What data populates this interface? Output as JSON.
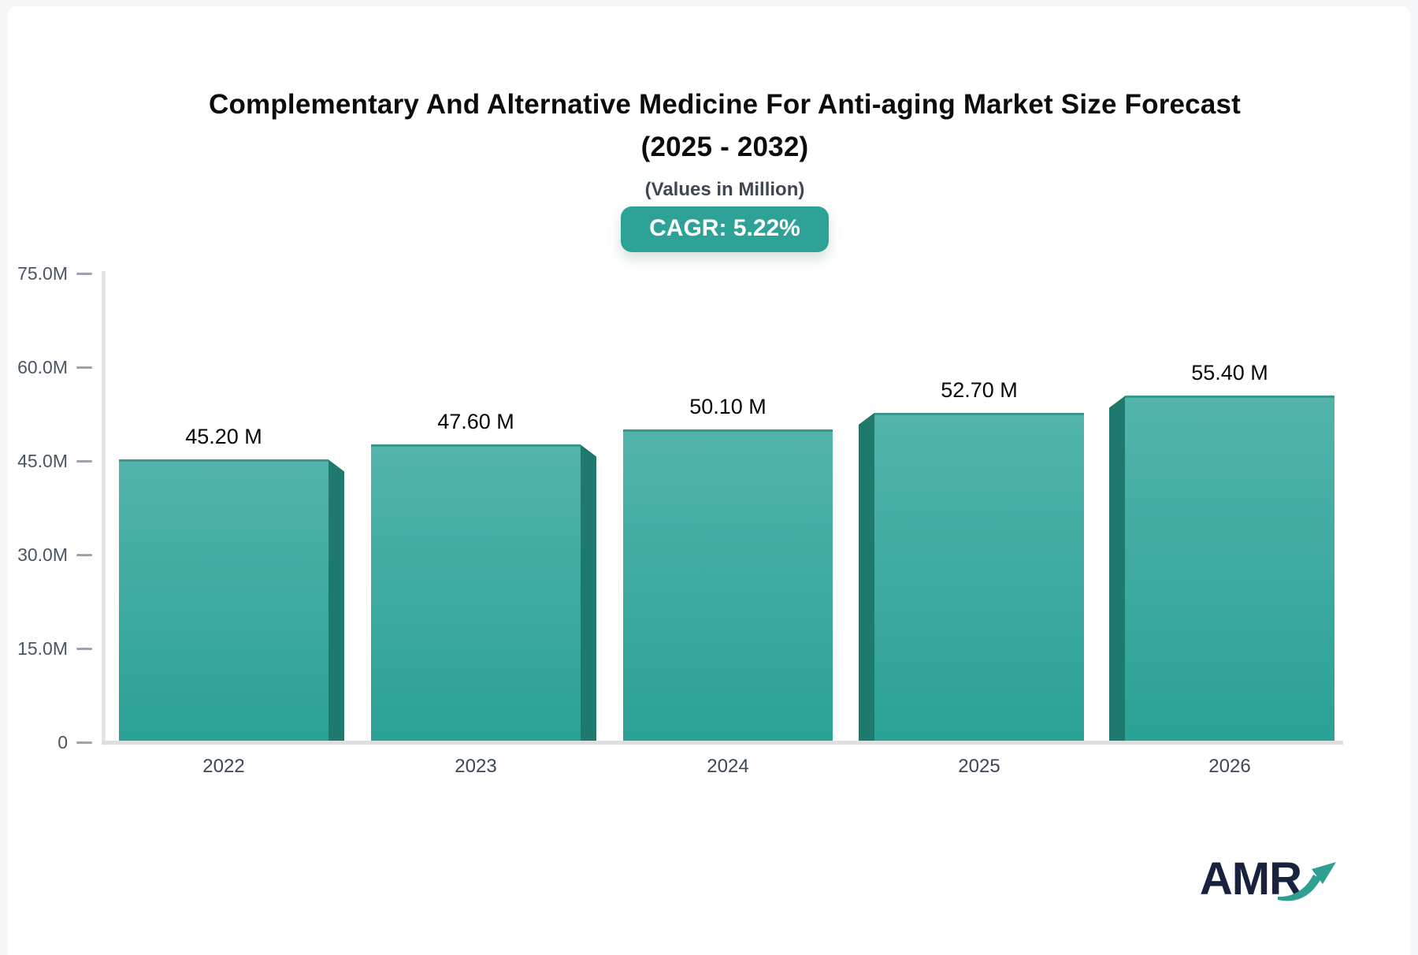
{
  "header": {
    "title_line1": "Complementary And Alternative Medicine For Anti-aging Market Size Forecast",
    "title_line2": "(2025 - 2032)",
    "subtitle": "(Values in Million)",
    "cagr_badge": "CAGR: 5.22%",
    "badge_color": "#2ea296"
  },
  "chart_data": {
    "type": "bar",
    "title": "Complementary And Alternative Medicine For Anti-aging Market Size Forecast (2025 - 2032)",
    "subtitle": "(Values in Million)",
    "categories": [
      "2022",
      "2023",
      "2024",
      "2025",
      "2026"
    ],
    "values": [
      45.2,
      47.6,
      50.1,
      52.7,
      55.4
    ],
    "value_labels": [
      "45.20 M",
      "47.60 M",
      "50.10 M",
      "52.70 M",
      "55.40 M"
    ],
    "unit": "Million",
    "cagr": "5.22%",
    "y_ticks": [
      "75.0M",
      "60.0M",
      "45.0M",
      "30.0M",
      "15.0M",
      "0"
    ],
    "y_tick_values": [
      75,
      60,
      45,
      30,
      15,
      0
    ],
    "ylim": [
      0,
      75
    ],
    "xlabel": "",
    "ylabel": "",
    "grid": false,
    "legend": false,
    "bar_color_top": "#52b4ab",
    "bar_color_bottom": "#2ba195",
    "bar_side_color": "#1f796d"
  },
  "footer": {
    "logo_text": "AMR",
    "logo_text_color": "#18223d",
    "logo_arrow_color": "#2f9f92"
  }
}
